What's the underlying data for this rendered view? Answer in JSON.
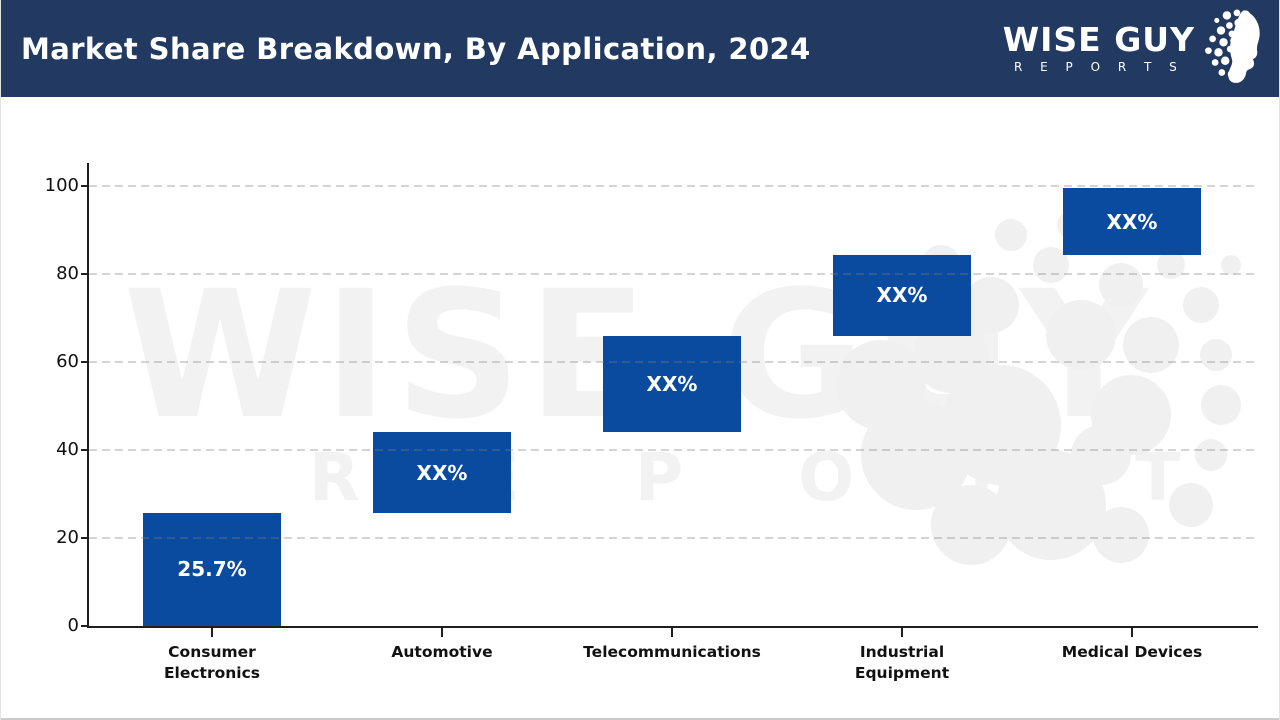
{
  "header": {
    "title": "Market Share Breakdown, By Application, 2024",
    "bg_color": "#223a62",
    "logo": {
      "primary": "WISE GUY",
      "secondary": "R E P O R T S"
    }
  },
  "watermark": {
    "line1": "WISE GUY",
    "line2": "R E P O R T S"
  },
  "chart_data": {
    "type": "bar",
    "subtype": "waterfall",
    "title": "Market Share Breakdown, By Application, 2024",
    "xlabel": "",
    "ylabel": "",
    "ylim": [
      0,
      105
    ],
    "y_ticks": [
      0,
      20,
      40,
      60,
      80,
      100
    ],
    "grid": "horizontal dashed, drawn above bars",
    "legend": "none",
    "bar_color": "#0b4b9f",
    "bar_label_color": "#ffffff",
    "categories": [
      "Consumer Electronics",
      "Automotive",
      "Telecommunications",
      "Industrial Equipment",
      "Medical Devices"
    ],
    "category_label_lines": [
      [
        "Consumer",
        "Electronics"
      ],
      [
        "Automotive"
      ],
      [
        "Telecommunications"
      ],
      [
        "Industrial",
        "Equipment"
      ],
      [
        "Medical Devices"
      ]
    ],
    "segments": [
      {
        "category": "Consumer Electronics",
        "start": 0,
        "end": 25.7,
        "value_label": "25.7%"
      },
      {
        "category": "Automotive",
        "start": 25.7,
        "end": 44.0,
        "value_label": "XX%"
      },
      {
        "category": "Telecommunications",
        "start": 44.0,
        "end": 66.0,
        "value_label": "XX%"
      },
      {
        "category": "Industrial Equipment",
        "start": 66.0,
        "end": 84.3,
        "value_label": "XX%"
      },
      {
        "category": "Medical Devices",
        "start": 84.3,
        "end": 99.5,
        "value_label": "XX%"
      }
    ]
  }
}
